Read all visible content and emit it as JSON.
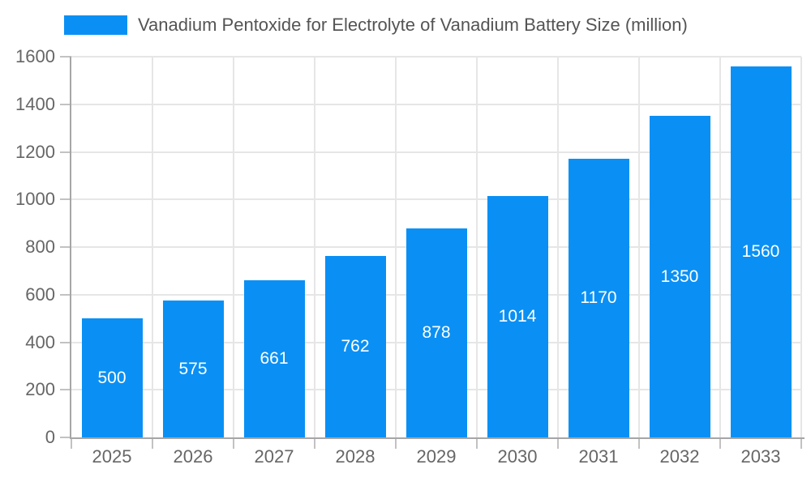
{
  "chart_data": {
    "type": "bar",
    "title": "Vanadium Pentoxide for Electrolyte of Vanadium Battery Size (million)",
    "legend": [
      "Vanadium Pentoxide for Electrolyte of Vanadium Battery Size (million)"
    ],
    "legend_position": "top-left",
    "categories": [
      "2025",
      "2026",
      "2027",
      "2028",
      "2029",
      "2030",
      "2031",
      "2032",
      "2033"
    ],
    "values": [
      500,
      575,
      661,
      762,
      878,
      1014,
      1170,
      1350,
      1560
    ],
    "xlabel": "",
    "ylabel": "",
    "ylim": [
      0,
      1600
    ],
    "yticks": [
      0,
      200,
      400,
      600,
      800,
      1000,
      1200,
      1400,
      1600
    ],
    "grid": true,
    "value_labels_shown": true,
    "colors": {
      "bar": "#0a90f4",
      "bar_label": "#ffffff",
      "axis_text": "#666666",
      "legend_text": "#545454",
      "gridline": "#e6e6e6",
      "axis_line": "#a6a6a6",
      "tick": "#c2c2c2",
      "background": "#ffffff"
    }
  }
}
